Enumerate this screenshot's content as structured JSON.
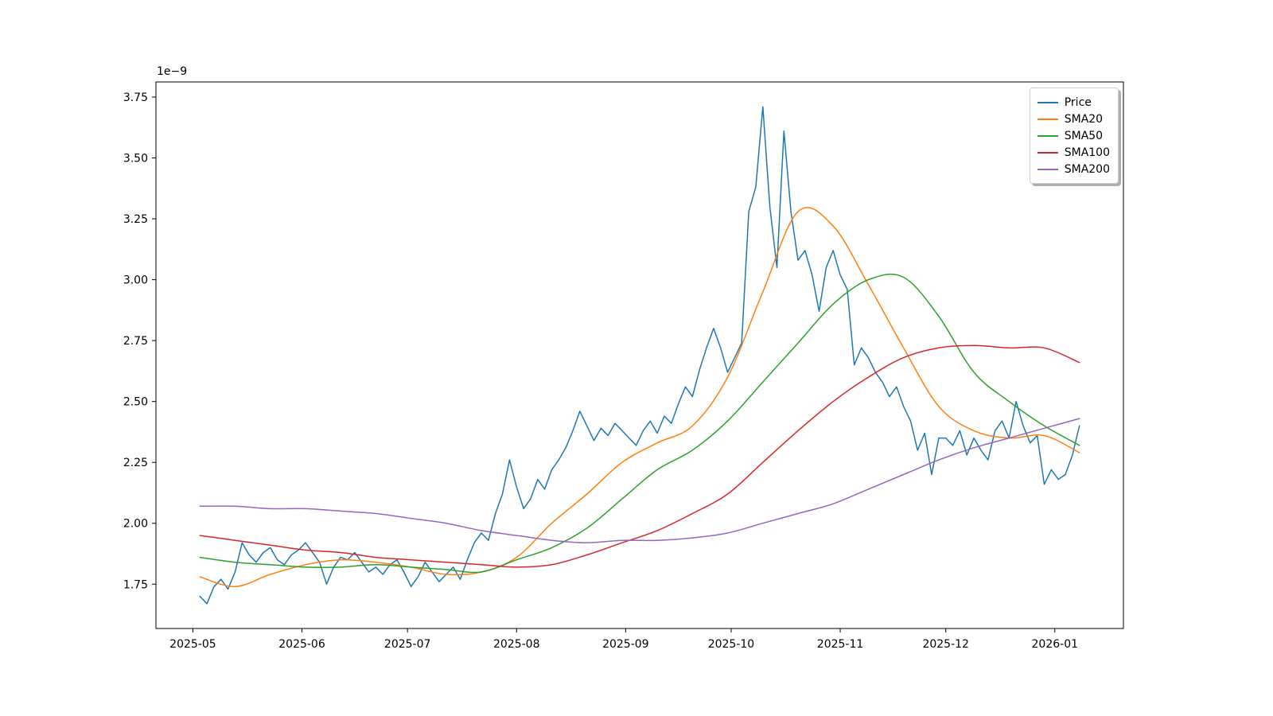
{
  "figure": {
    "background": "#ffffff"
  },
  "chart_data": {
    "type": "line",
    "title": "",
    "xlabel": "",
    "ylabel": "",
    "y_offset_label": "1e−9",
    "y_scale_factor": "1e-9",
    "grid": false,
    "legend_position": "upper right",
    "x_unit": "days since 2025-05-01",
    "xlim": [
      -10.5,
      264.5
    ],
    "ylim": [
      1.568,
      3.812
    ],
    "x_ticks": [
      {
        "day": 0,
        "label": "2025-05"
      },
      {
        "day": 31,
        "label": "2025-06"
      },
      {
        "day": 61,
        "label": "2025-07"
      },
      {
        "day": 92,
        "label": "2025-08"
      },
      {
        "day": 123,
        "label": "2025-09"
      },
      {
        "day": 153,
        "label": "2025-10"
      },
      {
        "day": 184,
        "label": "2025-11"
      },
      {
        "day": 214,
        "label": "2025-12"
      },
      {
        "day": 245,
        "label": "2026-01"
      }
    ],
    "y_ticks": [
      {
        "value": 1.75,
        "label": "1.75"
      },
      {
        "value": 2.0,
        "label": "2.00"
      },
      {
        "value": 2.25,
        "label": "2.25"
      },
      {
        "value": 2.5,
        "label": "2.50"
      },
      {
        "value": 2.75,
        "label": "2.75"
      },
      {
        "value": 3.0,
        "label": "3.00"
      },
      {
        "value": 3.25,
        "label": "3.25"
      },
      {
        "value": 3.5,
        "label": "3.50"
      },
      {
        "value": 3.75,
        "label": "3.75"
      }
    ],
    "series": [
      {
        "name": "Price",
        "color": "#1f77b4",
        "x_start": 2,
        "x_step": 2,
        "values": [
          1.7,
          1.67,
          1.74,
          1.77,
          1.73,
          1.8,
          1.92,
          1.87,
          1.84,
          1.88,
          1.9,
          1.85,
          1.83,
          1.87,
          1.89,
          1.92,
          1.88,
          1.84,
          1.75,
          1.82,
          1.86,
          1.85,
          1.88,
          1.84,
          1.8,
          1.82,
          1.79,
          1.83,
          1.85,
          1.8,
          1.74,
          1.78,
          1.84,
          1.8,
          1.76,
          1.79,
          1.82,
          1.77,
          1.85,
          1.92,
          1.96,
          1.93,
          2.04,
          2.12,
          2.26,
          2.15,
          2.06,
          2.1,
          2.18,
          2.14,
          2.22,
          2.26,
          2.31,
          2.38,
          2.46,
          2.4,
          2.34,
          2.39,
          2.36,
          2.41,
          2.38,
          2.35,
          2.32,
          2.38,
          2.42,
          2.37,
          2.44,
          2.41,
          2.49,
          2.56,
          2.52,
          2.63,
          2.72,
          2.8,
          2.72,
          2.62,
          2.68,
          2.74,
          3.28,
          3.38,
          3.71,
          3.3,
          3.05,
          3.61,
          3.28,
          3.08,
          3.12,
          3.02,
          2.87,
          3.05,
          3.12,
          3.02,
          2.96,
          2.65,
          2.72,
          2.68,
          2.62,
          2.58,
          2.52,
          2.56,
          2.48,
          2.42,
          2.3,
          2.37,
          2.2,
          2.35,
          2.35,
          2.32,
          2.38,
          2.28,
          2.35,
          2.3,
          2.26,
          2.38,
          2.42,
          2.35,
          2.5,
          2.4,
          2.33,
          2.36,
          2.16,
          2.22,
          2.18,
          2.2,
          2.28,
          2.4
        ]
      },
      {
        "name": "SMA20",
        "color": "#ff7f0e",
        "x_start": 2,
        "x_step": 10,
        "values": [
          1.78,
          1.74,
          1.79,
          1.83,
          1.85,
          1.84,
          1.82,
          1.79,
          1.8,
          1.86,
          2.0,
          2.12,
          2.25,
          2.33,
          2.4,
          2.6,
          2.95,
          3.28,
          3.22,
          2.98,
          2.72,
          2.48,
          2.38,
          2.35,
          2.36,
          2.29
        ]
      },
      {
        "name": "SMA50",
        "color": "#2ca02c",
        "x_start": 2,
        "x_step": 10,
        "values": [
          1.86,
          1.84,
          1.83,
          1.82,
          1.82,
          1.83,
          1.82,
          1.81,
          1.8,
          1.85,
          1.9,
          1.98,
          2.1,
          2.22,
          2.3,
          2.42,
          2.58,
          2.74,
          2.9,
          3.0,
          3.01,
          2.85,
          2.62,
          2.5,
          2.4,
          2.32
        ]
      },
      {
        "name": "SMA100",
        "color": "#d62728",
        "x_start": 2,
        "x_step": 10,
        "values": [
          1.95,
          1.93,
          1.91,
          1.89,
          1.88,
          1.86,
          1.85,
          1.84,
          1.83,
          1.82,
          1.83,
          1.87,
          1.92,
          1.97,
          2.04,
          2.12,
          2.25,
          2.38,
          2.5,
          2.6,
          2.68,
          2.72,
          2.73,
          2.72,
          2.72,
          2.66
        ]
      },
      {
        "name": "SMA200",
        "color": "#9467bd",
        "x_start": 2,
        "x_step": 10,
        "values": [
          2.07,
          2.07,
          2.06,
          2.06,
          2.05,
          2.04,
          2.02,
          2.0,
          1.97,
          1.95,
          1.93,
          1.92,
          1.93,
          1.93,
          1.94,
          1.96,
          2.0,
          2.04,
          2.08,
          2.14,
          2.2,
          2.26,
          2.31,
          2.35,
          2.39,
          2.43
        ]
      }
    ]
  }
}
